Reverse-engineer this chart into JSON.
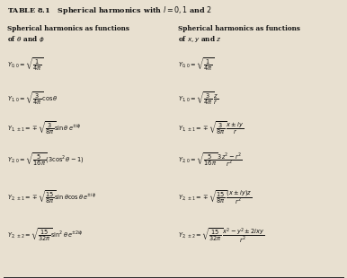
{
  "title": "TABLE 8.1   Spherical harmonics with $l = 0, 1$ and $2$",
  "col1_header_line1": "Spherical harmonics as functions",
  "col1_header_line2": "of $\\theta$ and $\\phi$",
  "col2_header_line1": "Spherical harmonics as functions",
  "col2_header_line2": "of $x, y$ and $z$",
  "col1_rows": [
    "$Y_{0,0} = \\sqrt{\\dfrac{1}{4\\pi}}$",
    "$Y_{1,0} = \\sqrt{\\dfrac{3}{4\\pi}}\\cos\\theta$",
    "$Y_{1,\\pm1} = \\mp\\sqrt{\\dfrac{3}{8\\pi}}\\sin\\theta\\, e^{\\pm i\\phi}$",
    "$Y_{2,0} = \\sqrt{\\dfrac{5}{16\\pi}}(3\\cos^{2}\\theta - 1)$",
    "$Y_{2,\\pm1} = \\mp\\sqrt{\\dfrac{15}{8\\pi}}\\sin\\theta\\cos\\theta\\, e^{\\pm i\\phi}$",
    "$Y_{2,\\pm2} = \\sqrt{\\dfrac{15}{32\\pi}}\\sin^{2}\\theta\\, e^{\\pm 2i\\phi}$"
  ],
  "col2_rows": [
    "$Y_{0,0} = \\sqrt{\\dfrac{1}{4\\pi}}$",
    "$Y_{1,0} = \\sqrt{\\dfrac{3}{4\\pi}}\\,\\dfrac{z}{r}$",
    "$Y_{1,\\pm1} = \\mp\\sqrt{\\dfrac{3}{8\\pi}}\\,\\dfrac{x \\pm iy}{r}$",
    "$Y_{2,0} = \\sqrt{\\dfrac{5}{16\\pi}}\\,\\dfrac{3z^{2} - r^{2}}{r^{2}}$",
    "$Y_{2,\\pm1} = \\mp\\sqrt{\\dfrac{15}{8\\pi}}\\,\\dfrac{(x \\pm iy)z}{r^{2}}$",
    "$Y_{2,\\pm2} = \\sqrt{\\dfrac{15}{32\\pi}}\\,\\dfrac{x^{2} - y^{2} \\pm 2ixy}{r^{2}}$"
  ],
  "bg_color": "#e8e0d0",
  "text_color": "#111111",
  "line_color": "#333333",
  "title_fontsize": 5.8,
  "header_fontsize": 5.2,
  "row_fontsize": 4.8
}
